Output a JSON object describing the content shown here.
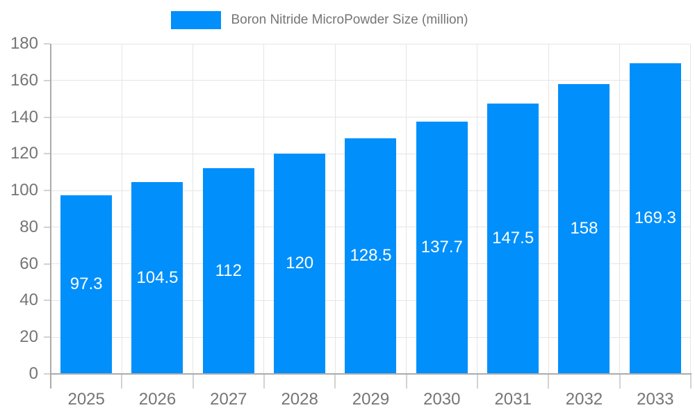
{
  "chart_data": {
    "type": "bar",
    "title": "Boron Nitride MicroPowder Size (million)",
    "categories": [
      "2025",
      "2026",
      "2027",
      "2028",
      "2029",
      "2030",
      "2031",
      "2032",
      "2033"
    ],
    "values": [
      97.3,
      104.5,
      112,
      120,
      128.5,
      137.7,
      147.5,
      158,
      169.3
    ],
    "data_labels": [
      "97.3",
      "104.5",
      "112",
      "120",
      "128.5",
      "137.7",
      "147.5",
      "158",
      "169.3"
    ],
    "xlabel": "",
    "ylabel": "",
    "ylim": [
      0,
      180
    ],
    "ytick_step": 20,
    "yticks": [
      0,
      20,
      40,
      60,
      80,
      100,
      120,
      140,
      160,
      180
    ],
    "grid": true,
    "legend": {
      "position": "top",
      "label": "Boron Nitride MicroPowder Size (million)"
    },
    "colors": {
      "bar": "#008FFB",
      "bar_label_text": "#ffffff",
      "axis_text": "#757575",
      "gridline": "#e5e5e5",
      "tick": "#d2d2d2",
      "axis_line": "#ababab",
      "background": "#ffffff"
    }
  }
}
